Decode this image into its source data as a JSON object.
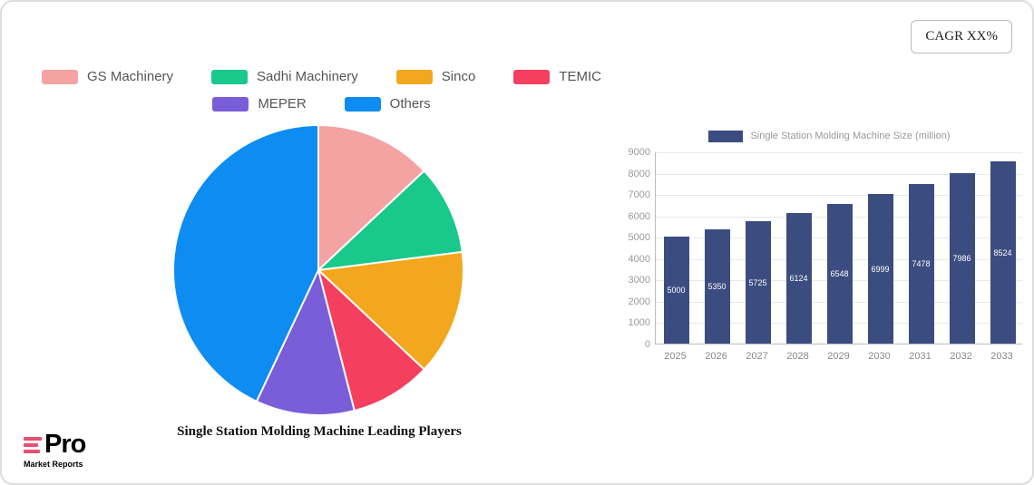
{
  "cagr": {
    "label": "CAGR XX%"
  },
  "logo": {
    "name": "Pro",
    "subtitle": "Market Reports"
  },
  "chart_data": [
    {
      "type": "pie",
      "title": "Single Station Molding Machine Leading Players",
      "labels": [
        "GS Machinery",
        "Sadhi Machinery",
        "Sinco",
        "TEMIC",
        "MEPER",
        "Others"
      ],
      "values": [
        13,
        10,
        14,
        9,
        11,
        43
      ],
      "colors": [
        "#f4a3a3",
        "#19c88b",
        "#f2a71e",
        "#f43f5e",
        "#7a5dd8",
        "#0d8cf2"
      ],
      "legend_position": "top",
      "start_angle_deg": 0,
      "direction": "clockwise"
    },
    {
      "type": "bar",
      "legend": "Single Station Molding Machine Size (million)",
      "categories": [
        "2025",
        "2026",
        "2027",
        "2028",
        "2029",
        "2030",
        "2031",
        "2032",
        "2033"
      ],
      "values": [
        5000,
        5350,
        5725,
        6124,
        6548,
        6999,
        7478,
        7986,
        8524
      ],
      "xlabel": "",
      "ylabel": "",
      "ylim": [
        0,
        9000
      ],
      "ytick_step": 1000,
      "bar_color": "#3b4d80",
      "grid": true,
      "value_label_color": "#ffffff"
    }
  ]
}
